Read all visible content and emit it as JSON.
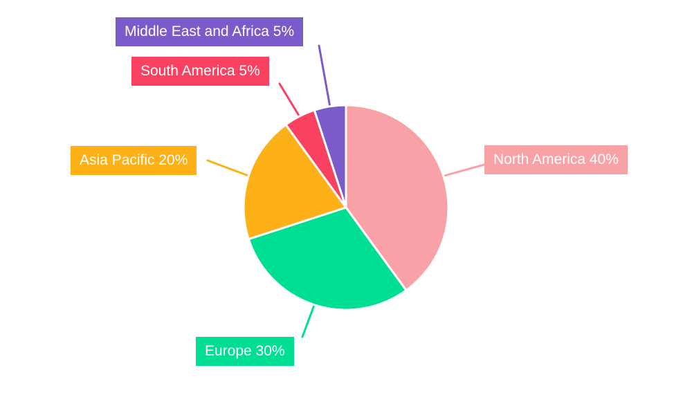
{
  "chart_data": {
    "type": "pie",
    "title": "",
    "labels": [
      "North America",
      "Europe",
      "Asia Pacific",
      "South America",
      "Middle East and Africa"
    ],
    "values": [
      40,
      30,
      20,
      5,
      5
    ],
    "unit": "%",
    "display_labels": [
      "North America 40%",
      "Europe 30%",
      "Asia Pacific 20%",
      "South America 5%",
      "Middle East and Africa 5%"
    ],
    "colors": [
      "#F8A2A8",
      "#00DE94",
      "#FDB017",
      "#FB4161",
      "#7A5BC9"
    ],
    "label_text_color": "#FFFFFF",
    "slice_border_color": "#FFFFFF",
    "background": "#FFFFFF",
    "legend": "none",
    "start_angle": "top",
    "direction": "clockwise"
  }
}
